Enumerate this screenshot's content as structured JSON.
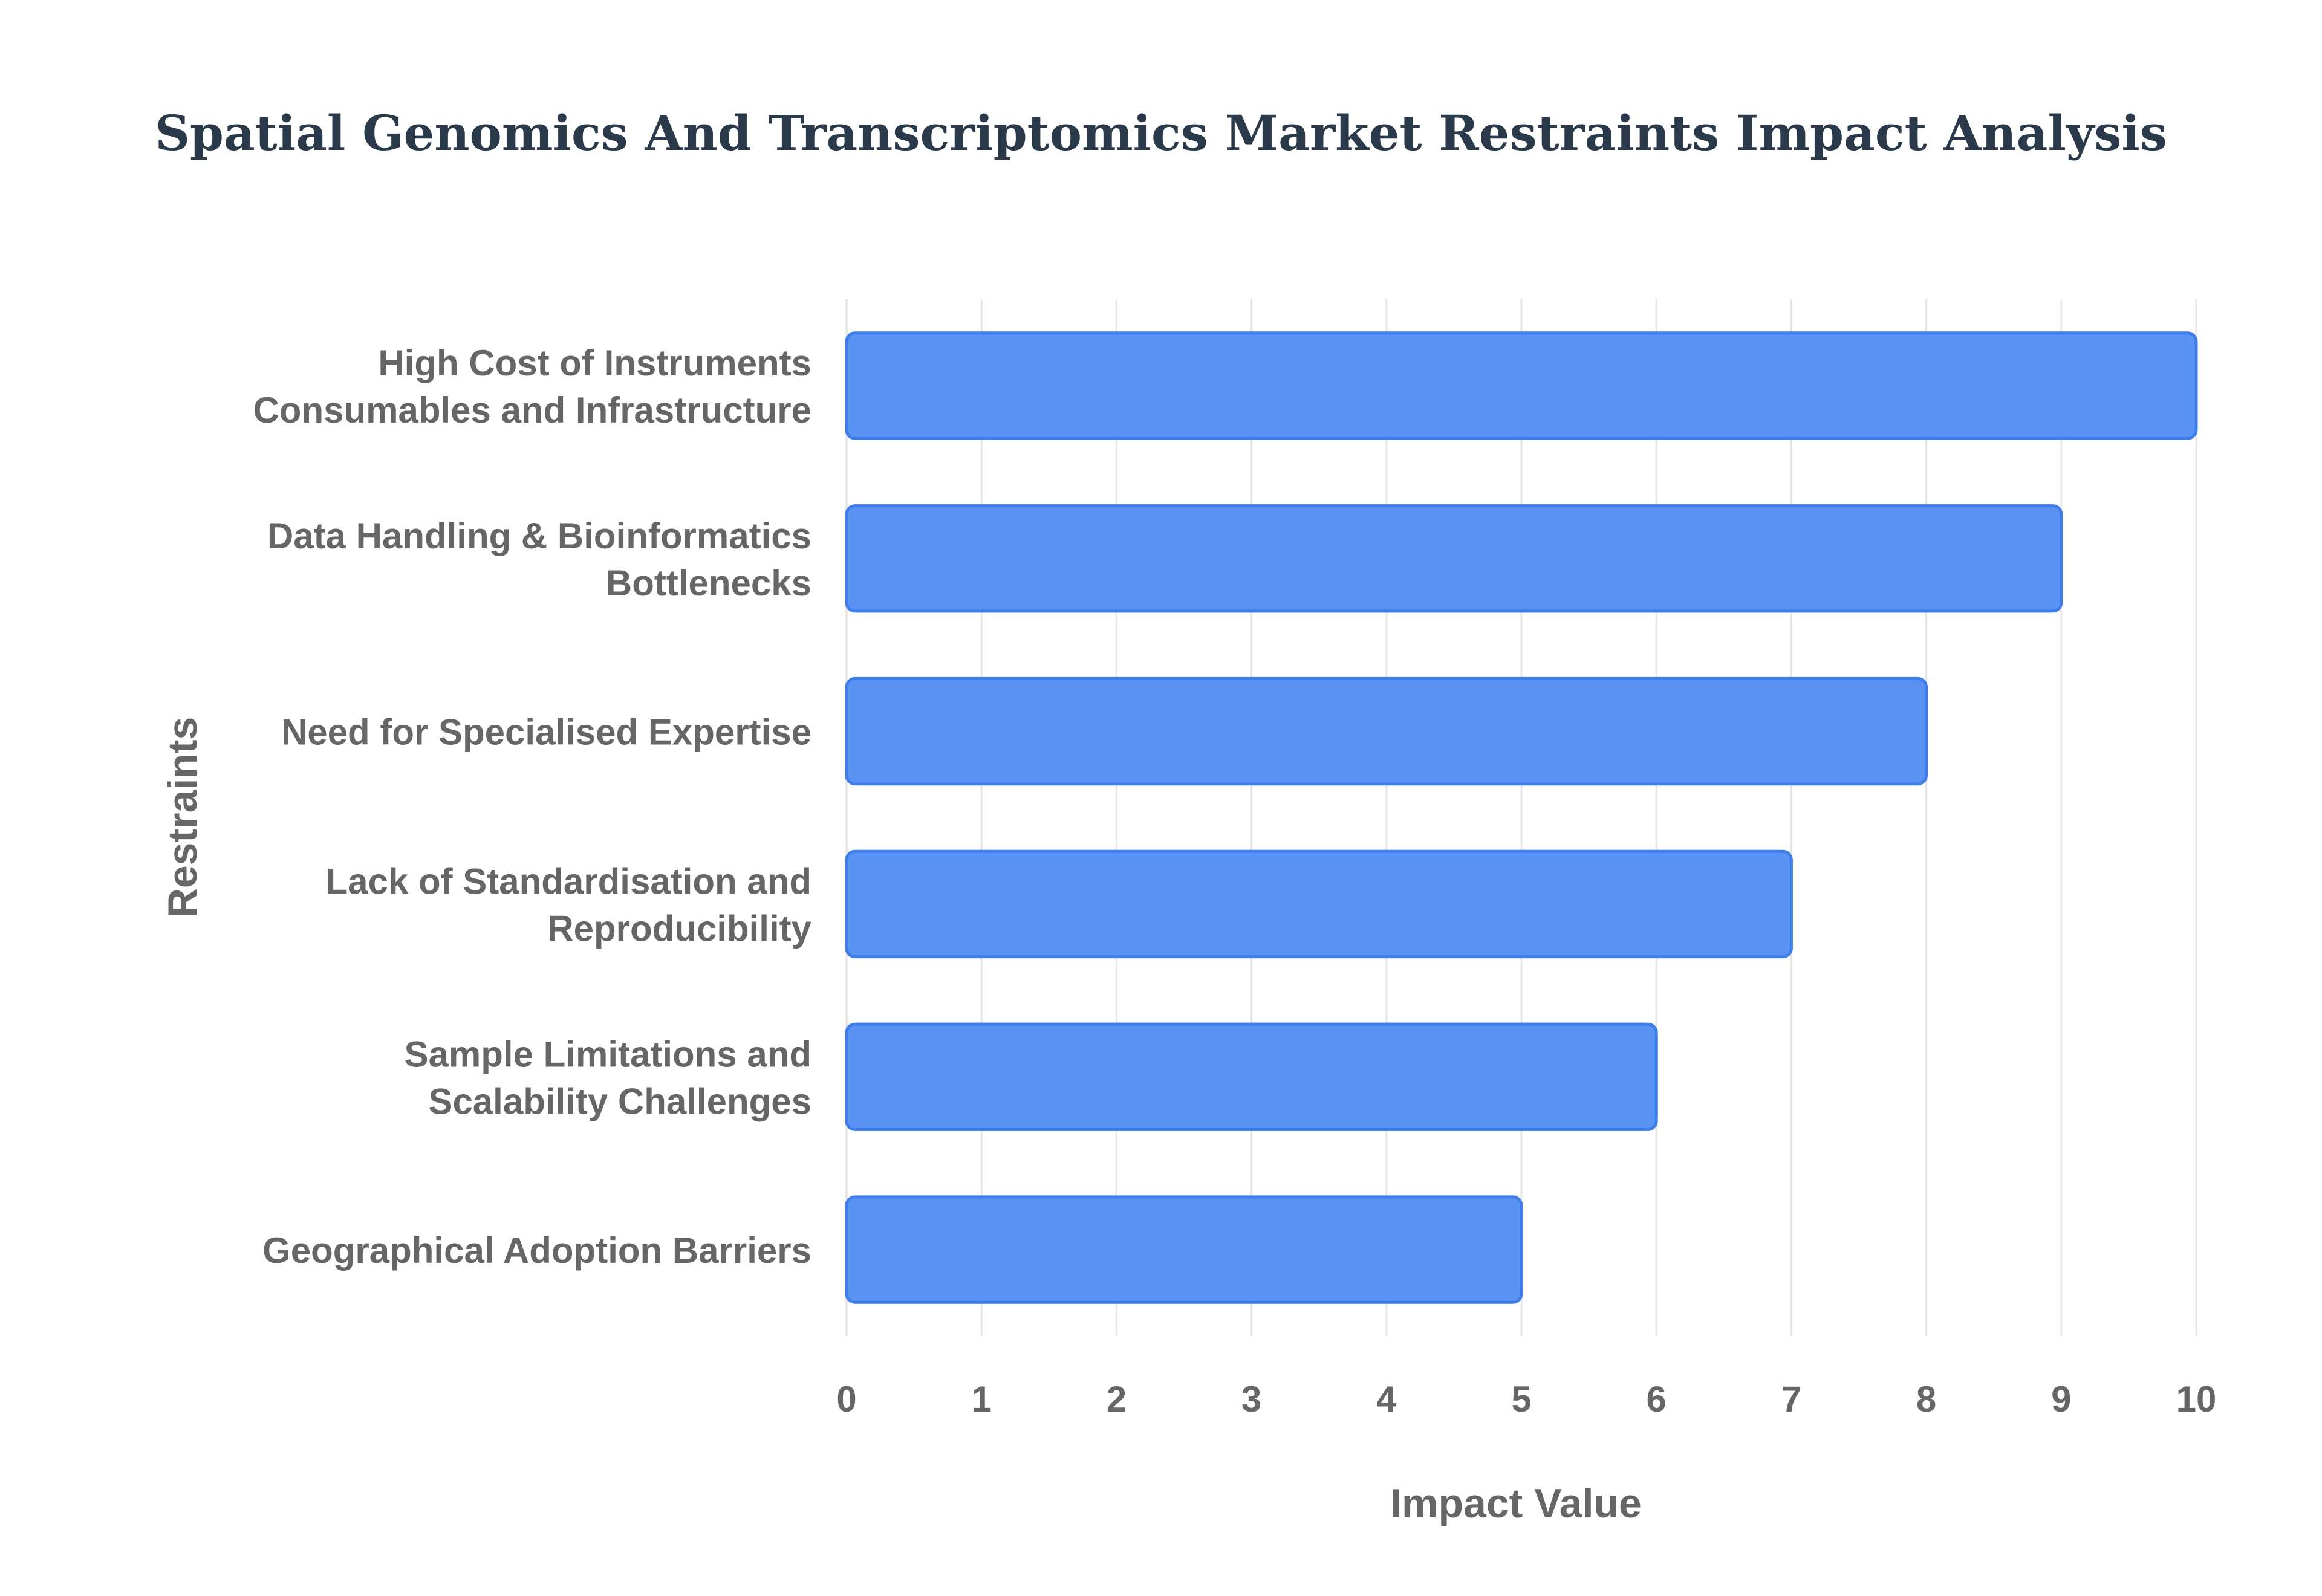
{
  "chart_data": {
    "type": "bar",
    "orientation": "horizontal",
    "title": "Spatial Genomics And Transcriptomics Market Restraints Impact Analysis",
    "xlabel": "Impact Value",
    "ylabel": "Restraints",
    "categories": [
      [
        "High Cost of Instruments",
        "Consumables and Infrastructure"
      ],
      [
        "Data Handling & Bioinformatics",
        "Bottlenecks"
      ],
      [
        "Need for Specialised Expertise"
      ],
      [
        "Lack of Standardisation and",
        "Reproducibility"
      ],
      [
        "Sample Limitations and",
        "Scalability Challenges"
      ],
      [
        "Geographical Adoption Barriers"
      ]
    ],
    "values": [
      10,
      9,
      8,
      7,
      6,
      5
    ],
    "xlim": [
      0,
      10
    ],
    "xticks": [
      "0",
      "1",
      "2",
      "3",
      "4",
      "5",
      "6",
      "7",
      "8",
      "9",
      "10"
    ],
    "grid": true,
    "legend": "none",
    "colors": {
      "bar_fill": "#5b93f4",
      "bar_stroke": "#3f7de8",
      "grid": "#e6e6e6",
      "title": "#2b3a4a",
      "label": "#666666"
    }
  }
}
